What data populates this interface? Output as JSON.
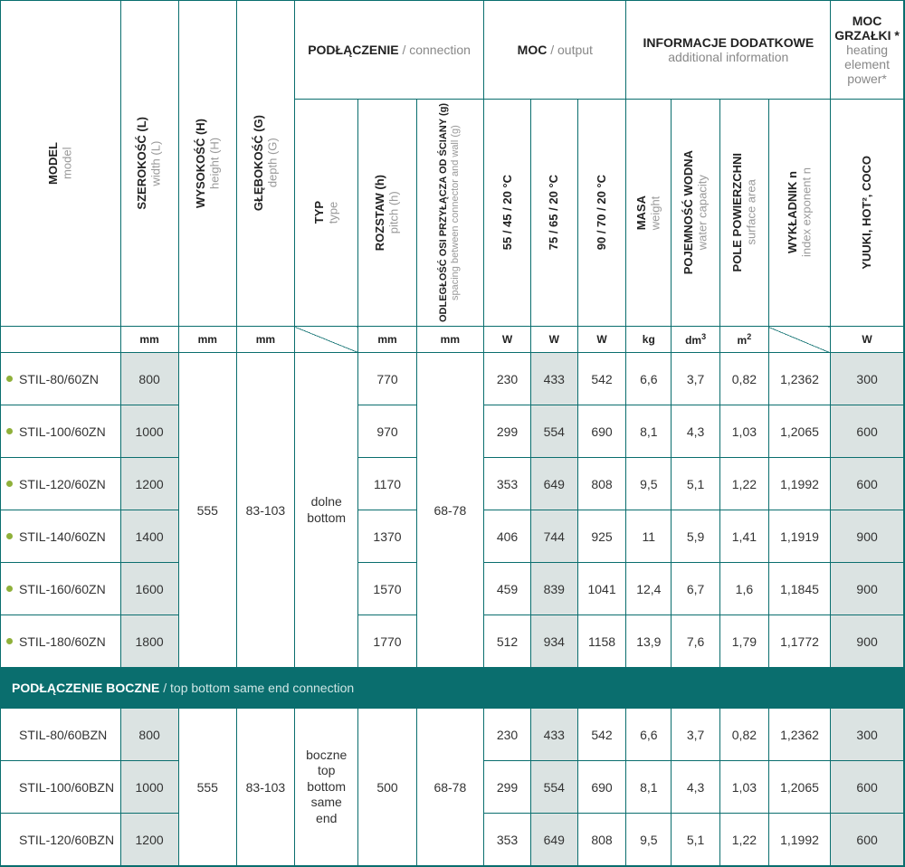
{
  "groups": {
    "g1_pl": "PODŁĄCZENIE",
    "g1_en": "/ connection",
    "g2_pl": "MOC",
    "g2_en": "/ output",
    "g3_pl": "INFORMACJE DODATKOWE",
    "g3_en": "additional information",
    "g4_pl": "MOC GRZAŁKI *",
    "g4_en": "heating element power*"
  },
  "cols": {
    "model_pl": "MODEL",
    "model_en": "model",
    "width_pl": "SZEROKOŚĆ (L)",
    "width_en": "width (L)",
    "height_pl": "WYSOKOŚĆ (H)",
    "height_en": "height (H)",
    "depth_pl": "GŁĘBOKOŚĆ (G)",
    "depth_en": "depth (G)",
    "typ_pl": "TYP",
    "typ_en": "type",
    "pitch_pl": "ROZSTAW (h)",
    "pitch_en": "pitch (h)",
    "spacing_pl": "ODLEGŁOŚĆ OSI PRZYŁĄCZA OD ŚCIANY (g)",
    "spacing_en": "spacing between connector and wall (g)",
    "t55": "55 / 45 / 20 °C",
    "t75": "75 / 65 / 20 °C",
    "t90": "90 / 70 / 20 °C",
    "mass_pl": "MASA",
    "mass_en": "weight",
    "cap_pl": "POJEMNOŚĆ WODNA",
    "cap_en": "water capacity",
    "area_pl": "POLE POWIERZCHNI",
    "area_en": "surface area",
    "exp_pl": "WYKŁADNIK n",
    "exp_en": "index exponent n",
    "heater": "YUUKI, HOT², COCO"
  },
  "units": {
    "mm": "mm",
    "W": "W",
    "kg": "kg",
    "dm3": "dm",
    "m2": "m"
  },
  "typ": {
    "bottom_pl": "dolne",
    "bottom_en": "bottom",
    "side_pl": "boczne",
    "side_en": "top bottom same end"
  },
  "shared": {
    "height": "555",
    "depth": "83-103",
    "spacing": "68-78",
    "pitch_side": "500"
  },
  "section": {
    "side_pl": "PODŁĄCZENIE BOCZNE",
    "side_en": "/ top bottom same end connection"
  },
  "rows1": [
    {
      "model": "STIL-80/60ZN",
      "width": "800",
      "pitch": "770",
      "w55": "230",
      "w75": "433",
      "w90": "542",
      "mass": "6,6",
      "cap": "3,7",
      "area": "0,82",
      "exp": "1,2362",
      "heater": "300"
    },
    {
      "model": "STIL-100/60ZN",
      "width": "1000",
      "pitch": "970",
      "w55": "299",
      "w75": "554",
      "w90": "690",
      "mass": "8,1",
      "cap": "4,3",
      "area": "1,03",
      "exp": "1,2065",
      "heater": "600"
    },
    {
      "model": "STIL-120/60ZN",
      "width": "1200",
      "pitch": "1170",
      "w55": "353",
      "w75": "649",
      "w90": "808",
      "mass": "9,5",
      "cap": "5,1",
      "area": "1,22",
      "exp": "1,1992",
      "heater": "600"
    },
    {
      "model": "STIL-140/60ZN",
      "width": "1400",
      "pitch": "1370",
      "w55": "406",
      "w75": "744",
      "w90": "925",
      "mass": "11",
      "cap": "5,9",
      "area": "1,41",
      "exp": "1,1919",
      "heater": "900"
    },
    {
      "model": "STIL-160/60ZN",
      "width": "1600",
      "pitch": "1570",
      "w55": "459",
      "w75": "839",
      "w90": "1041",
      "mass": "12,4",
      "cap": "6,7",
      "area": "1,6",
      "exp": "1,1845",
      "heater": "900"
    },
    {
      "model": "STIL-180/60ZN",
      "width": "1800",
      "pitch": "1770",
      "w55": "512",
      "w75": "934",
      "w90": "1158",
      "mass": "13,9",
      "cap": "7,6",
      "area": "1,79",
      "exp": "1,1772",
      "heater": "900"
    }
  ],
  "rows2": [
    {
      "model": "STIL-80/60BZN",
      "width": "800",
      "w55": "230",
      "w75": "433",
      "w90": "542",
      "mass": "6,6",
      "cap": "3,7",
      "area": "0,82",
      "exp": "1,2362",
      "heater": "300"
    },
    {
      "model": "STIL-100/60BZN",
      "width": "1000",
      "w55": "299",
      "w75": "554",
      "w90": "690",
      "mass": "8,1",
      "cap": "4,3",
      "area": "1,03",
      "exp": "1,2065",
      "heater": "600"
    },
    {
      "model": "STIL-120/60BZN",
      "width": "1200",
      "w55": "353",
      "w75": "649",
      "w90": "808",
      "mass": "9,5",
      "cap": "5,1",
      "area": "1,22",
      "exp": "1,1992",
      "heater": "600"
    }
  ]
}
